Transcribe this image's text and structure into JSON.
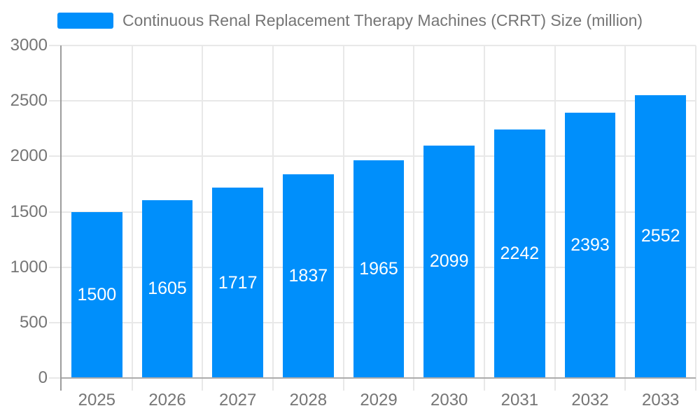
{
  "chart_data": {
    "type": "bar",
    "title": "",
    "categories": [
      "2025",
      "2026",
      "2027",
      "2028",
      "2029",
      "2030",
      "2031",
      "2032",
      "2033"
    ],
    "series": [
      {
        "name": "Continuous Renal Replacement Therapy Machines (CRRT) Size (million)",
        "values": [
          1500,
          1605,
          1717,
          1837,
          1965,
          2099,
          2242,
          2393,
          2552
        ],
        "color": "#008FFB"
      }
    ],
    "xlabel": "",
    "ylabel": "",
    "ylim": [
      0,
      3000
    ],
    "yticks": [
      0,
      500,
      1000,
      1500,
      2000,
      2500,
      3000
    ],
    "grid": true,
    "legend_position": "top",
    "value_labels": "inside-center",
    "value_label_color": "#FFFFFF",
    "colors": {
      "bar": "#008FFB",
      "axis_text": "#757575",
      "grid_line": "#E8E8E8",
      "y_axis_line": "#9C9C9C",
      "x_axis_line": "#ACACAC",
      "background": "#FFFFFF"
    }
  }
}
